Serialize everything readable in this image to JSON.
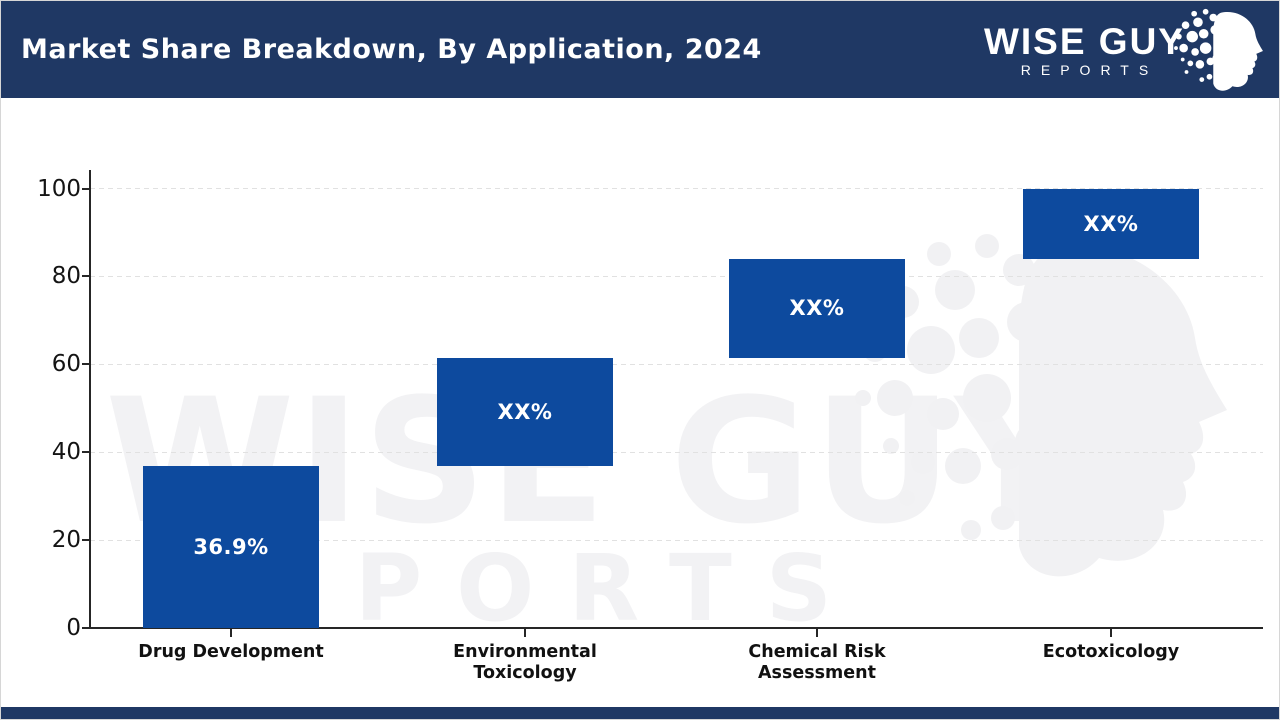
{
  "header": {
    "title": "Market Share Breakdown, By Application, 2024",
    "bg_color": "#1f3864",
    "logo": {
      "line1": "WISE GUY",
      "line2": "REPORTS"
    }
  },
  "watermark": {
    "line1": "WISE GUY",
    "line2": "REPORTS"
  },
  "chart_data": {
    "type": "bar",
    "subtype": "waterfall",
    "title": "Market Share Breakdown, By Application, 2024",
    "categories": [
      "Drug Development",
      "Environmental\nToxicology",
      "Chemical Risk\nAssessment",
      "Ecotoxicology"
    ],
    "bars": [
      {
        "category": "Drug Development",
        "start": 0,
        "end": 36.9,
        "label": "36.9%"
      },
      {
        "category": "Environmental Toxicology",
        "start": 36.9,
        "end": 61.5,
        "label": "XX%"
      },
      {
        "category": "Chemical Risk Assessment",
        "start": 61.5,
        "end": 84.0,
        "label": "XX%"
      },
      {
        "category": "Ecotoxicology",
        "start": 84.0,
        "end": 100.0,
        "label": "XX%"
      }
    ],
    "bar_color": "#0d4a9e",
    "xlabel": "",
    "ylabel": "",
    "ylim": [
      0,
      100
    ],
    "yticks": [
      0,
      20,
      40,
      60,
      80,
      100
    ],
    "grid": "horizontal-dashed",
    "legend": "none"
  }
}
